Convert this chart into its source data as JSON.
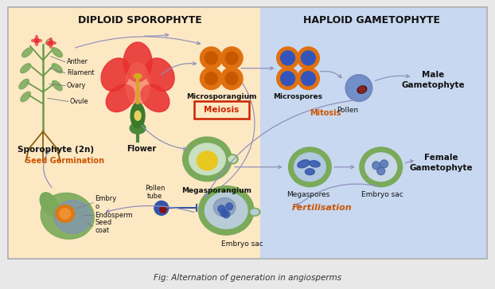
{
  "title": "Fig: Alternation of generation in angiosperms",
  "left_header": "DIPLOID SPOROPHYTE",
  "right_header": "HAPLOID GAMETOPHYTE",
  "left_bg": "#fde8c4",
  "right_bg": "#c8d8f0",
  "arrow_color": "#9090BB",
  "labels": {
    "anther": "Anther",
    "filament": "Filament",
    "ovary": "Ovary",
    "ovule": "Ovule",
    "flower": "Flower",
    "sporophyte": "Sporophyte (2n)",
    "seed_germination": "Seed Germination",
    "microsporangium": "Microsporangium",
    "meiosis": "Meiosis",
    "microspores": "Microspores",
    "mitosis": "Mitosis",
    "megasporangium": "Megasporangium",
    "megaspores": "Megaspores",
    "embryo_sac_r": "Embryo sac",
    "female_gametophyte": "Female\nGametophyte",
    "male_gametophyte": "Male\nGametophyte",
    "pollen": "Pollen",
    "fertilisation": "Fertilisation",
    "pollen_tube": "Pollen\ntube",
    "embryo_sac_b": "Embryo sac",
    "embryo": "Embry\no",
    "endosperm": "Endosperm",
    "seed_coat": "Seed\ncoat"
  }
}
